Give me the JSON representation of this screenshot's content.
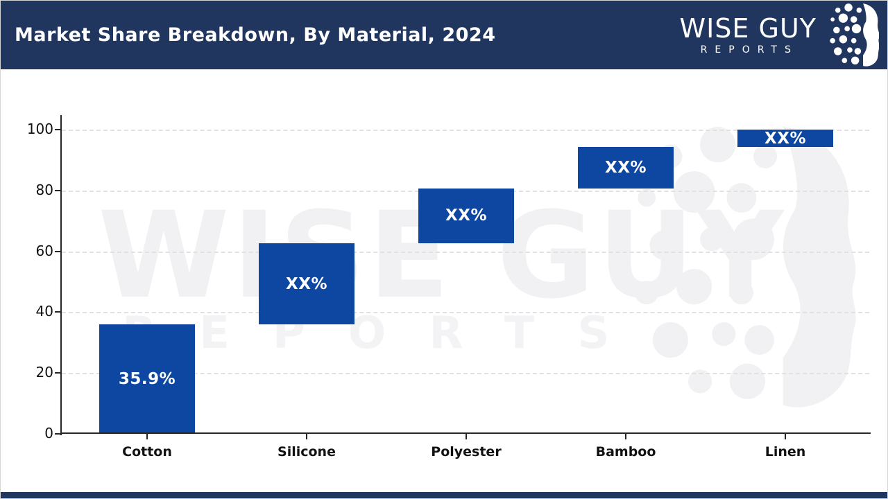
{
  "header": {
    "title": "Market Share Breakdown, By Material, 2024",
    "background_color": "#21365f",
    "brand": {
      "line1": "WISE GUY",
      "line2": "REPORTS"
    }
  },
  "watermark": {
    "line1": "WISE GUY",
    "line2": "REPORTS"
  },
  "chart_data": {
    "type": "bar",
    "variant": "waterfall",
    "title": "Market Share Breakdown, By Material, 2024",
    "categories": [
      "Cotton",
      "Silicone",
      "Polyester",
      "Bamboo",
      "Linen"
    ],
    "bars": [
      {
        "category": "Cotton",
        "start": 0,
        "end": 35.9,
        "label": "35.9%"
      },
      {
        "category": "Silicone",
        "start": 35.9,
        "end": 62.7,
        "label": "XX%"
      },
      {
        "category": "Polyester",
        "start": 62.7,
        "end": 80.7,
        "label": "XX%"
      },
      {
        "category": "Bamboo",
        "start": 80.7,
        "end": 94.3,
        "label": "XX%"
      },
      {
        "category": "Linen",
        "start": 94.3,
        "end": 100,
        "label": "XX%"
      }
    ],
    "yticks": [
      0,
      20,
      40,
      60,
      80,
      100
    ],
    "ylim": [
      0,
      104
    ],
    "xlabel": "",
    "ylabel": "",
    "grid": "horizontal-dashed",
    "legend": "none",
    "bar_color": "#0d47a1",
    "bar_label_color": "#ffffff"
  },
  "footer": {
    "background_color": "#21365f"
  }
}
